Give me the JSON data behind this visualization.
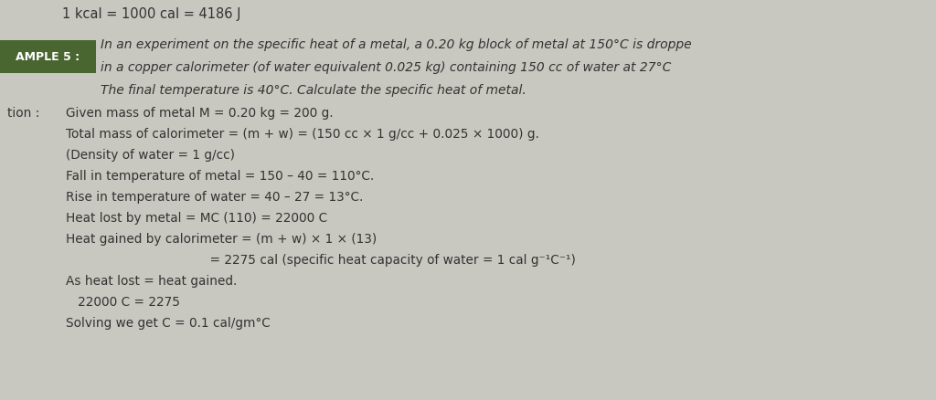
{
  "background_color": "#c8c7c0",
  "title_line": "1 kcal = 1000 cal = 4186 J",
  "title_fontsize": 10.5,
  "label_box_text": "AMPLE 5 :",
  "label_box_bg": "#4a6630",
  "label_box_fg": "#ffffff",
  "problem_text_line1": "In an experiment on the specific heat of a metal, a 0.20 kg block of metal at 150°C is droppe",
  "problem_text_line2": "in a copper calorimeter (of water equivalent 0.025 kg) containing 150 cc of water at 27°C",
  "problem_text_line3": "The final temperature is 40°C. Calculate the specific heat of metal.",
  "solution_label": "tion :",
  "solution_lines": [
    "Given mass of metal M = 0.20 kg = 200 g.",
    "Total mass of calorimeter = (m + w) = (150 cc × 1 g/cc + 0.025 × 1000) g.",
    "(Density of water = 1 g/cc)",
    "Fall in temperature of metal = 150 – 40 = 110°C.",
    "Rise in temperature of water = 40 – 27 = 13°C.",
    "Heat lost by metal = MC (110) = 22000 C",
    "Heat gained by calorimeter = (m + w) × 1 × (13)",
    "                                    = 2275 cal (specific heat capacity of water = 1 cal g⁻¹C⁻¹)",
    "As heat lost = heat gained.",
    "   22000 C = 2275",
    "Solving we get C = 0.1 cal/gm°C"
  ],
  "text_color": "#333333",
  "font_size_problem": 10.0,
  "font_size_solution": 9.8,
  "font_size_label": 9.0
}
